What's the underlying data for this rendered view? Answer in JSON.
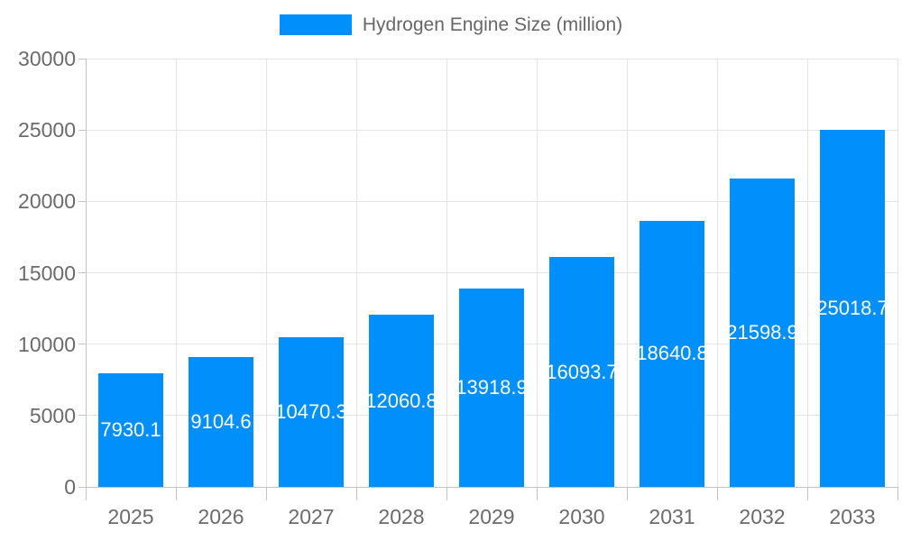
{
  "legend": {
    "label": "Hydrogen Engine Size (million)"
  },
  "colors": {
    "bar": "#008FFB",
    "grid": "#e4e4e4",
    "axis": "#c3c3c3",
    "axis_text": "#6b6b6b",
    "bar_label_text": "#ffffff",
    "background": "#ffffff"
  },
  "chart_data": {
    "type": "bar",
    "title": "Hydrogen Engine Size (million)",
    "categories": [
      "2025",
      "2026",
      "2027",
      "2028",
      "2029",
      "2030",
      "2031",
      "2032",
      "2033"
    ],
    "series": [
      {
        "name": "Hydrogen Engine Size (million)",
        "values": [
          7930.1,
          9104.6,
          10470.3,
          12060.8,
          13918.9,
          16093.7,
          18640.8,
          21598.9,
          25018.7
        ]
      }
    ],
    "bar_labels": [
      "7930.1",
      "9104.6",
      "10470.3",
      "12060.8",
      "13918.9",
      "16093.7",
      "18640.8",
      "21598.9",
      "25018.7"
    ],
    "xlabel": "",
    "ylabel": "",
    "ylim": [
      0,
      30000
    ],
    "yticks": [
      0,
      5000,
      10000,
      15000,
      20000,
      25000,
      30000
    ],
    "ytick_labels": [
      "0",
      "5000",
      "10000",
      "15000",
      "20000",
      "25000",
      "30000"
    ],
    "grid": true,
    "legend_position": "top"
  }
}
